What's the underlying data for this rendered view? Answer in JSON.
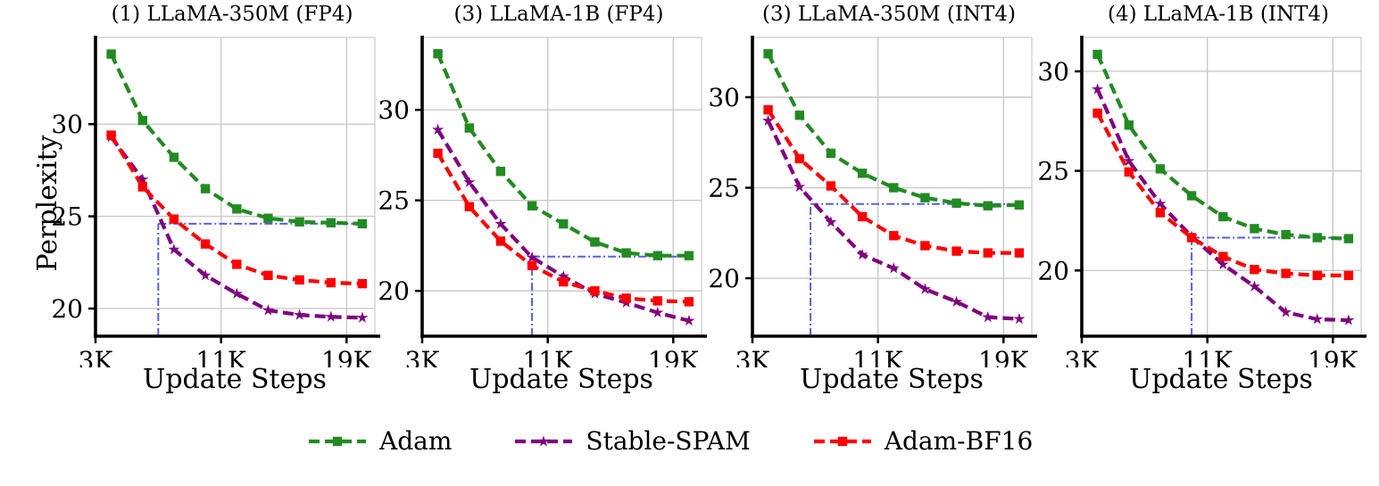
{
  "figure": {
    "background": "#ffffff",
    "grid_color": "#c9c9c9",
    "spine_color": "#000000",
    "faint_spine_color": "#cccccc",
    "ylabel": "Perplexity",
    "xlabel": "Update Steps"
  },
  "chart_data": [
    {
      "type": "line",
      "title": "(1) LLaMA-350M (FP4)",
      "xlabel": "Update Steps",
      "ylabel": "Perplexity",
      "x": [
        4,
        6,
        8,
        10,
        12,
        14,
        16,
        18,
        20
      ],
      "xlim": [
        3,
        20.8
      ],
      "ylim": [
        18.5,
        34.7
      ],
      "xtick_values": [
        3,
        11,
        19
      ],
      "xtick_labels": [
        "3K",
        "11K",
        "19K"
      ],
      "ytick_values": [
        20,
        25,
        30
      ],
      "grid": true,
      "series": [
        {
          "name": "Adam",
          "color": "#228B22",
          "marker": "square",
          "dash": "12 6",
          "values": [
            33.8,
            30.2,
            28.2,
            26.5,
            25.4,
            24.9,
            24.7,
            24.65,
            24.6
          ]
        },
        {
          "name": "Stable-SPAM",
          "color": "#800080",
          "marker": "star",
          "dash": "12 6",
          "values": [
            29.3,
            27.0,
            23.2,
            21.8,
            20.8,
            19.9,
            19.65,
            19.55,
            19.5
          ]
        },
        {
          "name": "Adam-BF16",
          "color": "#FF0000",
          "marker": "square",
          "dash": "12 6",
          "values": [
            29.4,
            26.6,
            24.85,
            23.5,
            22.4,
            21.8,
            21.55,
            21.4,
            21.35
          ]
        }
      ],
      "crosshair": {
        "x": 7.0,
        "y": 24.6,
        "color": "#5661E0"
      }
    },
    {
      "type": "line",
      "title": "(3) LLaMA-1B (FP4)",
      "xlabel": "Update Steps",
      "ylabel": "",
      "x": [
        4,
        6,
        8,
        10,
        12,
        14,
        16,
        18,
        20
      ],
      "xlim": [
        3,
        20.8
      ],
      "ylim": [
        17.5,
        34.0
      ],
      "xtick_values": [
        3,
        11,
        19
      ],
      "xtick_labels": [
        "3K",
        "11K",
        "19K"
      ],
      "ytick_values": [
        20,
        25,
        30
      ],
      "grid": true,
      "series": [
        {
          "name": "Adam",
          "color": "#228B22",
          "marker": "square",
          "dash": "12 6",
          "values": [
            33.1,
            29.0,
            26.6,
            24.7,
            23.7,
            22.7,
            22.1,
            21.95,
            21.95
          ]
        },
        {
          "name": "Stable-SPAM",
          "color": "#800080",
          "marker": "star",
          "dash": "12 6",
          "values": [
            28.9,
            26.0,
            23.7,
            21.85,
            20.8,
            19.85,
            19.35,
            18.8,
            18.35
          ]
        },
        {
          "name": "Adam-BF16",
          "color": "#FF0000",
          "marker": "square",
          "dash": "12 6",
          "values": [
            27.6,
            24.65,
            22.75,
            21.4,
            20.5,
            20.0,
            19.6,
            19.45,
            19.4
          ]
        }
      ],
      "crosshair": {
        "x": 10.0,
        "y": 21.9,
        "color": "#5661E0"
      }
    },
    {
      "type": "line",
      "title": "(3) LLaMA-350M (INT4)",
      "xlabel": "Update Steps",
      "ylabel": "",
      "x": [
        4,
        6,
        8,
        10,
        12,
        14,
        16,
        18,
        20
      ],
      "xlim": [
        3,
        20.8
      ],
      "ylim": [
        16.8,
        33.3
      ],
      "xtick_values": [
        3,
        11,
        19
      ],
      "xtick_labels": [
        "3K",
        "11K",
        "19K"
      ],
      "ytick_values": [
        20,
        25,
        30
      ],
      "grid": true,
      "series": [
        {
          "name": "Adam",
          "color": "#228B22",
          "marker": "square",
          "dash": "12 6",
          "values": [
            32.4,
            29.0,
            26.9,
            25.8,
            25.0,
            24.45,
            24.15,
            24.0,
            24.05
          ]
        },
        {
          "name": "Stable-SPAM",
          "color": "#800080",
          "marker": "star",
          "dash": "12 6",
          "values": [
            28.7,
            25.05,
            23.1,
            21.3,
            20.55,
            19.4,
            18.7,
            17.85,
            17.75
          ]
        },
        {
          "name": "Adam-BF16",
          "color": "#FF0000",
          "marker": "square",
          "dash": "12 6",
          "values": [
            29.3,
            26.6,
            25.1,
            23.4,
            22.35,
            21.8,
            21.5,
            21.4,
            21.4
          ]
        }
      ],
      "crosshair": {
        "x": 6.7,
        "y": 24.1,
        "color": "#5661E0"
      }
    },
    {
      "type": "line",
      "title": "(4) LLaMA-1B (INT4)",
      "xlabel": "Update Steps",
      "ylabel": "",
      "x": [
        4,
        6,
        8,
        10,
        12,
        14,
        16,
        18,
        20
      ],
      "xlim": [
        3,
        20.8
      ],
      "ylim": [
        16.7,
        31.7
      ],
      "xtick_values": [
        3,
        11,
        19
      ],
      "xtick_labels": [
        "3K",
        "11K",
        "19K"
      ],
      "ytick_values": [
        20,
        25,
        30
      ],
      "grid": true,
      "series": [
        {
          "name": "Adam",
          "color": "#228B22",
          "marker": "square",
          "dash": "12 6",
          "values": [
            30.85,
            27.3,
            25.1,
            23.75,
            22.7,
            22.1,
            21.8,
            21.65,
            21.6
          ]
        },
        {
          "name": "Stable-SPAM",
          "color": "#800080",
          "marker": "star",
          "dash": "12 6",
          "values": [
            29.1,
            25.5,
            23.35,
            21.7,
            20.3,
            19.2,
            17.9,
            17.55,
            17.5
          ]
        },
        {
          "name": "Adam-BF16",
          "color": "#FF0000",
          "marker": "square",
          "dash": "12 6",
          "values": [
            27.9,
            24.95,
            22.9,
            21.65,
            20.7,
            20.05,
            19.85,
            19.75,
            19.75
          ]
        }
      ],
      "crosshair": {
        "x": 10.0,
        "y": 21.65,
        "color": "#5661E0"
      }
    }
  ],
  "legend": {
    "items": [
      {
        "label": "Adam",
        "color": "#228B22",
        "marker": "square"
      },
      {
        "label": "Stable-SPAM",
        "color": "#800080",
        "marker": "star"
      },
      {
        "label": "Adam-BF16",
        "color": "#FF0000",
        "marker": "square"
      }
    ]
  }
}
